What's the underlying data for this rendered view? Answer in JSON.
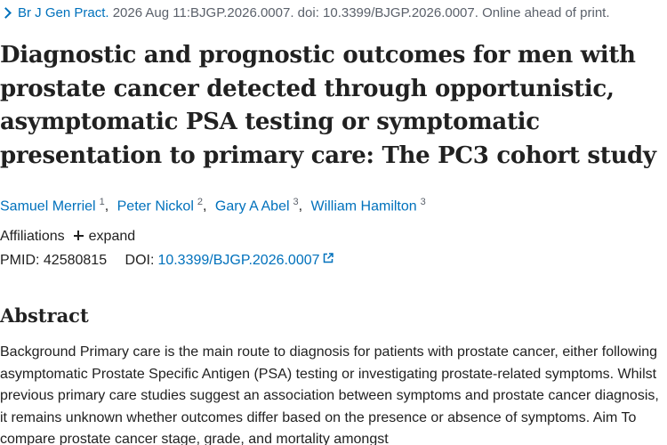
{
  "citation": {
    "journal": "Br J Gen Pract.",
    "details": " 2026 Aug 11:BJGP.2026.0007. doi: 10.3399/BJGP.2026.0007. Online ahead of print."
  },
  "article": {
    "title": "Diagnostic and prognostic outcomes for men with prostate cancer detected through opportunistic, asymptomatic PSA testing or symptomatic presentation to primary care: The PC3 cohort study"
  },
  "authors": [
    {
      "name": "Samuel Merriel",
      "sup": "1"
    },
    {
      "name": "Peter Nickol",
      "sup": "2"
    },
    {
      "name": "Gary A Abel",
      "sup": "3"
    },
    {
      "name": "William Hamilton",
      "sup": "3"
    }
  ],
  "affiliations": {
    "label": "Affiliations",
    "expand_label": "expand"
  },
  "identifiers": {
    "pmid_label": "PMID:",
    "pmid": "42580815",
    "doi_label": "DOI:",
    "doi": "10.3399/BJGP.2026.0007"
  },
  "abstract": {
    "heading": "Abstract",
    "text": "Background Primary care is the main route to diagnosis for patients with prostate cancer, either following asymptomatic Prostate Specific Antigen (PSA) testing or investigating prostate-related symptoms. Whilst previous primary care studies suggest an association between symptoms and prostate cancer diagnosis, it remains unknown whether outcomes differ based on the presence or absence of symptoms. Aim To compare prostate cancer stage, grade, and mortality amongst"
  },
  "colors": {
    "link": "#0071bc",
    "text": "#212121",
    "muted": "#5b616b"
  }
}
